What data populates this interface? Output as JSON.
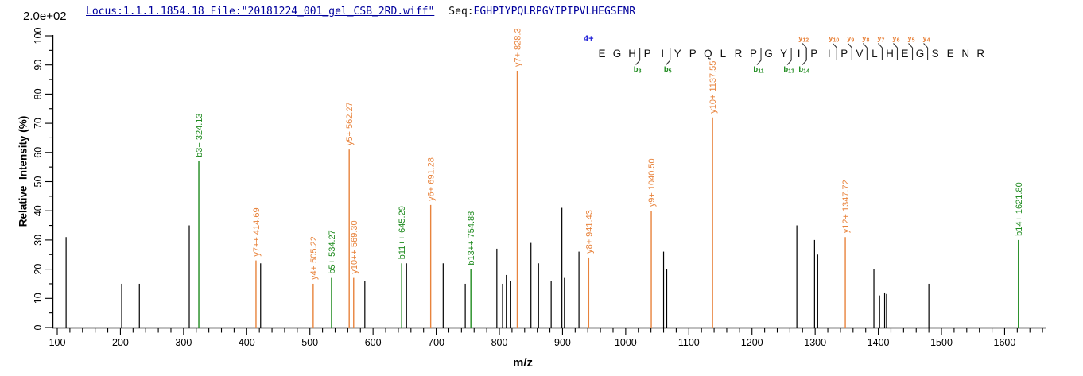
{
  "header": {
    "locus_file": "Locus:1.1.1.1854.18 File:\"20181224_001_gel_CSB_2RD.wiff\"",
    "seq_label": "Seq:",
    "sequence": "EGHPIYPQLRPGYIPIPVLHEGSENR",
    "scale_label": "2.0e+02"
  },
  "annotation": {
    "charge": "4+",
    "residues": [
      "E",
      "G",
      "H",
      "P",
      "I",
      "Y",
      "P",
      "Q",
      "L",
      "R",
      "P",
      "G",
      "Y",
      "I",
      "P",
      "I",
      "P",
      "V",
      "L",
      "H",
      "E",
      "G",
      "S",
      "E",
      "N",
      "R"
    ],
    "y_ions": [
      {
        "name": "y12",
        "before_residue": 15
      },
      {
        "name": "y10",
        "before_residue": 17
      },
      {
        "name": "y9",
        "before_residue": 18
      },
      {
        "name": "y8",
        "before_residue": 19
      },
      {
        "name": "y7",
        "before_residue": 20
      },
      {
        "name": "y6",
        "before_residue": 21
      },
      {
        "name": "y5",
        "before_residue": 22
      },
      {
        "name": "y4",
        "before_residue": 23
      }
    ],
    "b_ions": [
      {
        "name": "b3",
        "after_residue": 3
      },
      {
        "name": "b5",
        "after_residue": 5
      },
      {
        "name": "b11",
        "after_residue": 11
      },
      {
        "name": "b13",
        "after_residue": 13
      },
      {
        "name": "b14",
        "after_residue": 14
      }
    ]
  },
  "chart_data": {
    "type": "bar",
    "subtype": "centroided-mass-spectrum",
    "title": "",
    "xlabel": "m/z",
    "ylabel": "Relative  Intensity (%)",
    "xlim": [
      100,
      1660
    ],
    "ylim": [
      0,
      100
    ],
    "x_ticks": [
      100,
      200,
      300,
      400,
      500,
      600,
      700,
      800,
      900,
      1000,
      1100,
      1200,
      1300,
      1400,
      1500,
      1600
    ],
    "x_minor_step": 20,
    "y_ticks": [
      0,
      10,
      20,
      30,
      40,
      50,
      60,
      70,
      80,
      90,
      100
    ],
    "y_minor_step": 5,
    "grid": false,
    "legend": "none",
    "labeled_peaks": [
      {
        "label": "b3+ 324.13",
        "ion": "b3+",
        "mz": 324.13,
        "intensity": 57,
        "series": "b"
      },
      {
        "label": "y7++ 414.69",
        "ion": "y7++",
        "mz": 414.69,
        "intensity": 23,
        "series": "y"
      },
      {
        "label": "y4+ 505.22",
        "ion": "y4+",
        "mz": 505.22,
        "intensity": 15,
        "series": "y"
      },
      {
        "label": "b5+ 534.27",
        "ion": "b5+",
        "mz": 534.27,
        "intensity": 17,
        "series": "b"
      },
      {
        "label": "y5+ 562.27",
        "ion": "y5+",
        "mz": 562.27,
        "intensity": 61,
        "series": "y"
      },
      {
        "label": "y10++ 569.30",
        "ion": "y10++",
        "mz": 569.3,
        "intensity": 17,
        "series": "y"
      },
      {
        "label": "b11++ 645.29",
        "ion": "b11++",
        "mz": 645.29,
        "intensity": 22,
        "series": "b"
      },
      {
        "label": "y6+ 691.28",
        "ion": "y6+",
        "mz": 691.28,
        "intensity": 42,
        "series": "y"
      },
      {
        "label": "b13++ 754.88",
        "ion": "b13++",
        "mz": 754.88,
        "intensity": 20,
        "series": "b"
      },
      {
        "label": "y7+ 828.3",
        "ion": "y7+",
        "mz": 828.3,
        "intensity": 88,
        "series": "y"
      },
      {
        "label": "y8+ 941.43",
        "ion": "y8+",
        "mz": 941.43,
        "intensity": 24,
        "series": "y"
      },
      {
        "label": "y9+ 1040.50",
        "ion": "y9+",
        "mz": 1040.5,
        "intensity": 40,
        "series": "y"
      },
      {
        "label": "y10+ 1137.55",
        "ion": "y10+",
        "mz": 1137.55,
        "intensity": 72,
        "series": "y"
      },
      {
        "label": "y12+ 1347.72",
        "ion": "y12+",
        "mz": 1347.72,
        "intensity": 31,
        "series": "y"
      },
      {
        "label": "b14+ 1621.80",
        "ion": "b14+",
        "mz": 1621.8,
        "intensity": 30,
        "series": "b"
      }
    ],
    "unlabeled_peaks": [
      [
        114,
        31
      ],
      [
        202,
        15
      ],
      [
        230,
        15
      ],
      [
        309,
        35
      ],
      [
        422,
        22
      ],
      [
        587,
        16
      ],
      [
        653,
        22
      ],
      [
        711,
        22
      ],
      [
        746,
        15
      ],
      [
        796,
        27
      ],
      [
        805,
        15
      ],
      [
        811,
        18
      ],
      [
        818,
        16
      ],
      [
        850,
        29
      ],
      [
        862,
        22
      ],
      [
        882,
        16
      ],
      [
        899,
        41
      ],
      [
        903,
        17
      ],
      [
        926,
        26
      ],
      [
        1060,
        26
      ],
      [
        1065,
        20
      ],
      [
        1271,
        35
      ],
      [
        1299,
        30
      ],
      [
        1304,
        25
      ],
      [
        1393,
        20
      ],
      [
        1402,
        11
      ],
      [
        1410,
        12
      ],
      [
        1413,
        11.5
      ],
      [
        1480,
        15
      ]
    ]
  },
  "colors": {
    "y_ion": "#E8833C",
    "b_ion": "#1F8B1F",
    "peak": "#000000",
    "axis": "#000000",
    "header_text": "#00009C",
    "charge": "#2424D8",
    "marker_line": "#333333"
  }
}
